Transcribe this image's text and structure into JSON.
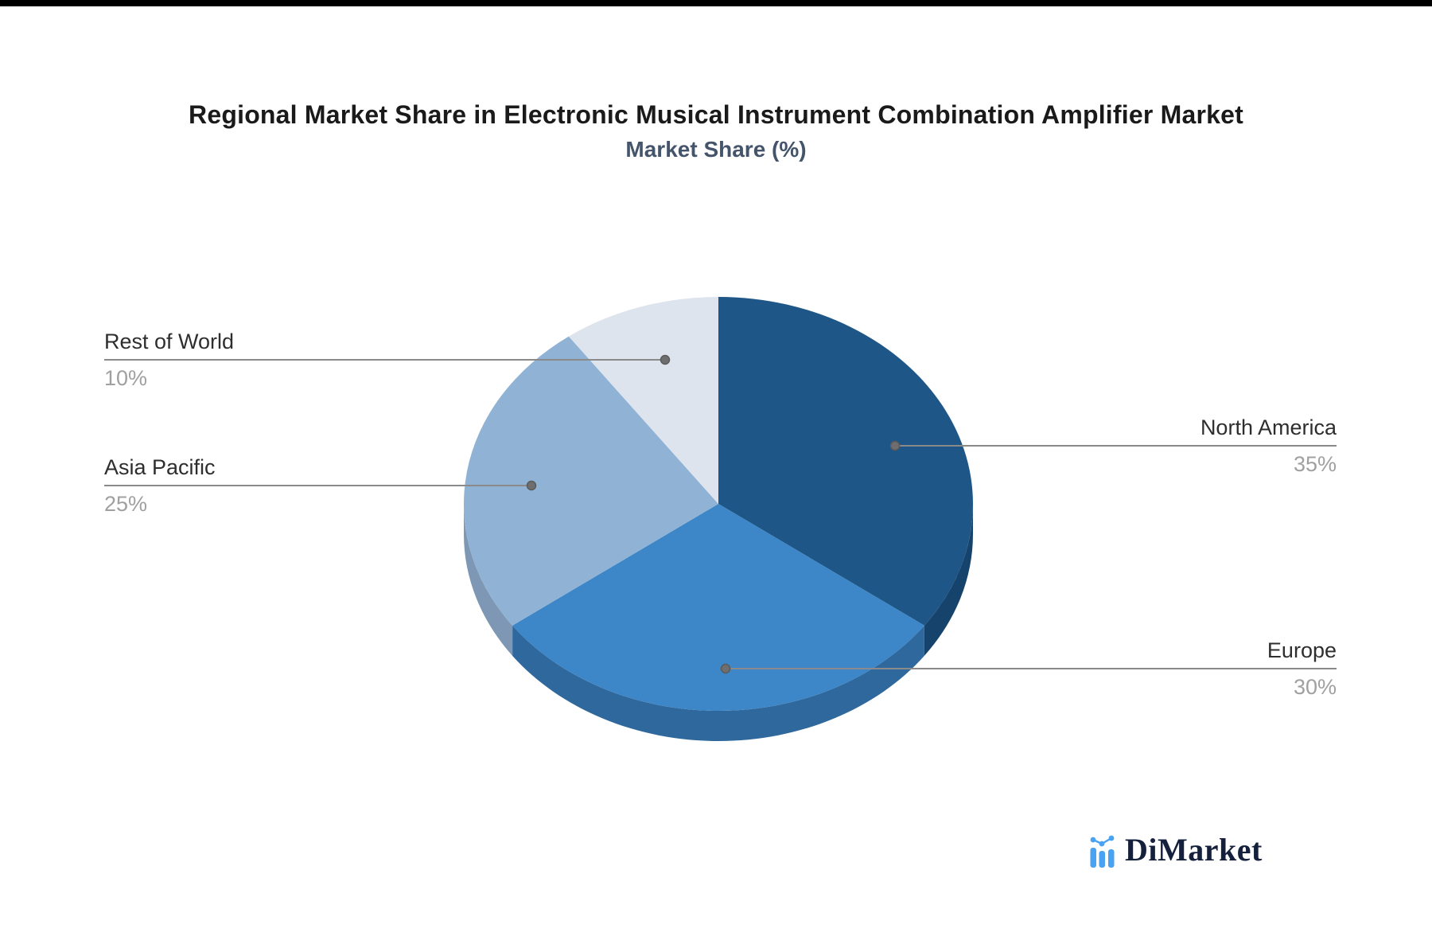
{
  "header": {
    "title": "Regional Market Share in Electronic Musical Instrument Combination Amplifier Market",
    "subtitle": "Market Share (%)"
  },
  "chart_data": {
    "type": "pie",
    "title": "Regional Market Share in Electronic Musical Instrument Combination Amplifier Market",
    "subtitle": "Market Share (%)",
    "unit": "%",
    "effect": "3d",
    "start_angle_deg": 0,
    "direction": "clockwise",
    "legend_position": "none",
    "slices": [
      {
        "label": "North America",
        "value": 35,
        "display": "35%",
        "color": "#1e5787",
        "side_color": "#16436b"
      },
      {
        "label": "Europe",
        "value": 30,
        "display": "30%",
        "color": "#3d86c8",
        "side_color": "#2f689c"
      },
      {
        "label": "Asia Pacific",
        "value": 25,
        "display": "25%",
        "color": "#90b3d5",
        "side_color": "#7d97b4"
      },
      {
        "label": "Rest of World",
        "value": 10,
        "display": "10%",
        "color": "#dde4ee",
        "side_color": "#b9c5d7"
      }
    ]
  },
  "branding": {
    "name": "DiMarket",
    "icon": "bar-chart-logo-icon",
    "text_color": "#15213c",
    "icon_color": "#4aa2f2"
  },
  "style": {
    "leader_line_color": "#8a8a8a",
    "anchor_dot_color": "#6e6e6e",
    "label_text_color": "#2e2e2e",
    "pct_text_color": "#a0a0a0"
  }
}
